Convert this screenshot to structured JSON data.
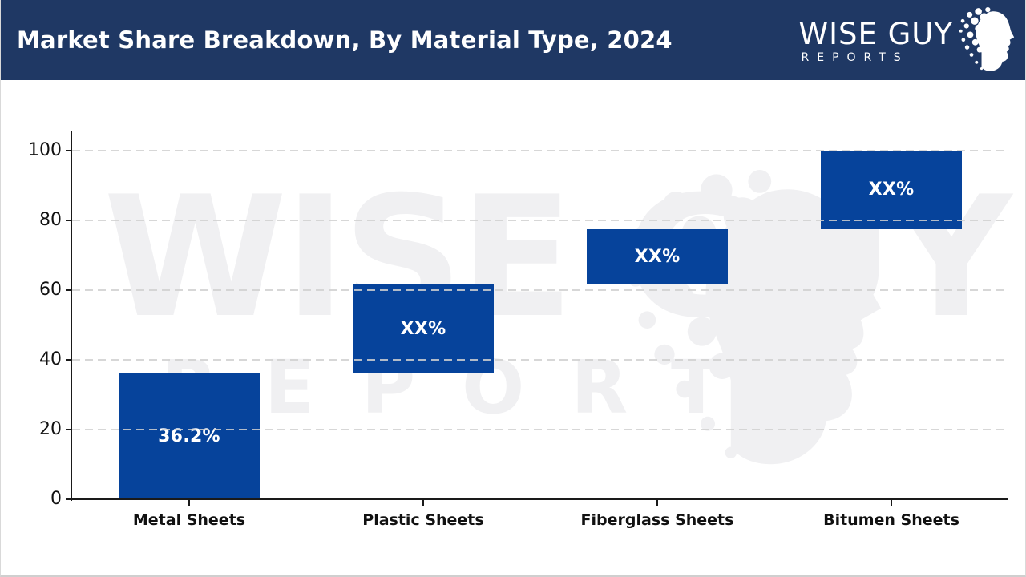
{
  "header": {
    "title": "Market Share Breakdown, By Material Type, 2024",
    "bg_color": "#1F3864",
    "logo": {
      "line1": "WISE GUY",
      "line2": "REPORTS"
    }
  },
  "watermark": {
    "line1": "WISE GUY",
    "line2": "REPORTS"
  },
  "chart_data": {
    "type": "bar",
    "subtype": "waterfall",
    "title": "Market Share Breakdown, By Material Type, 2024",
    "xlabel": "",
    "ylabel": "",
    "categories": [
      "Metal Sheets",
      "Plastic Sheets",
      "Fiberglass Sheets",
      "Bitumen Sheets"
    ],
    "segments": [
      {
        "category": "Metal Sheets",
        "start": 0,
        "end": 36.2,
        "label": "36.2%"
      },
      {
        "category": "Plastic Sheets",
        "start": 36.2,
        "end": 61.5,
        "label": "XX%"
      },
      {
        "category": "Fiberglass Sheets",
        "start": 61.5,
        "end": 77.3,
        "label": "XX%"
      },
      {
        "category": "Bitumen Sheets",
        "start": 77.3,
        "end": 100,
        "label": "XX%"
      }
    ],
    "y_ticks": [
      0,
      20,
      40,
      60,
      80,
      100
    ],
    "ylim": [
      0,
      105
    ],
    "grid": "dashed-horizontal",
    "legend": "none",
    "bar_color": "#06439B",
    "bar_label_color": "#FFFFFF",
    "axis_color": "#1a1a1a",
    "grid_color": "#d0d0d0"
  }
}
